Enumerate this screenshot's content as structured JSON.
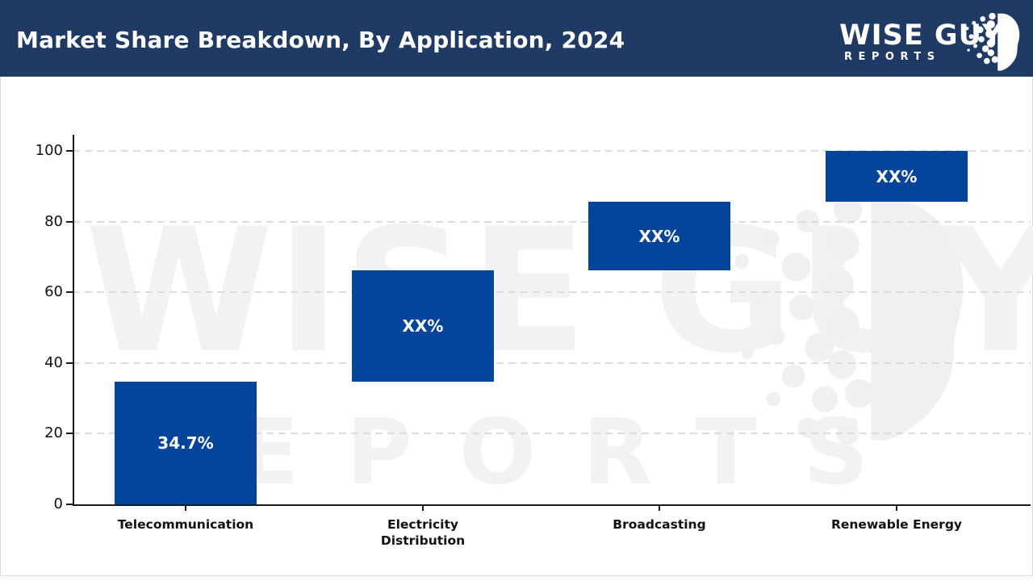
{
  "header": {
    "title": "Market Share Breakdown, By Application, 2024",
    "brand_line1": "WISE GUY",
    "brand_line2": "REPORTS"
  },
  "watermark": {
    "line1": "WISE GUY",
    "line2": "REPORTS"
  },
  "colors": {
    "header_bg": "#203a66",
    "bar": "#05449b",
    "grid": "#dcdcdc",
    "watermark": "#f2f2f4"
  },
  "chart_data": {
    "type": "bar",
    "subtype": "waterfall",
    "title": "Market Share Breakdown, By Application, 2024",
    "xlabel": "",
    "ylabel": "",
    "categories": [
      "Telecommunication",
      "Electricity\nDistribution",
      "Broadcasting",
      "Renewable Energy"
    ],
    "segments": [
      {
        "category": "Telecommunication",
        "start": 0,
        "end": 34.7,
        "label": "34.7%"
      },
      {
        "category": "Electricity Distribution",
        "start": 34.7,
        "end": 66.2,
        "label": "XX%"
      },
      {
        "category": "Broadcasting",
        "start": 66.2,
        "end": 85.6,
        "label": "XX%"
      },
      {
        "category": "Renewable Energy",
        "start": 85.6,
        "end": 100,
        "label": "XX%"
      }
    ],
    "yticks": [
      0,
      20,
      40,
      60,
      80,
      100
    ],
    "ylim": [
      0,
      107
    ],
    "grid": "horizontal-dashed",
    "legend": "none"
  }
}
